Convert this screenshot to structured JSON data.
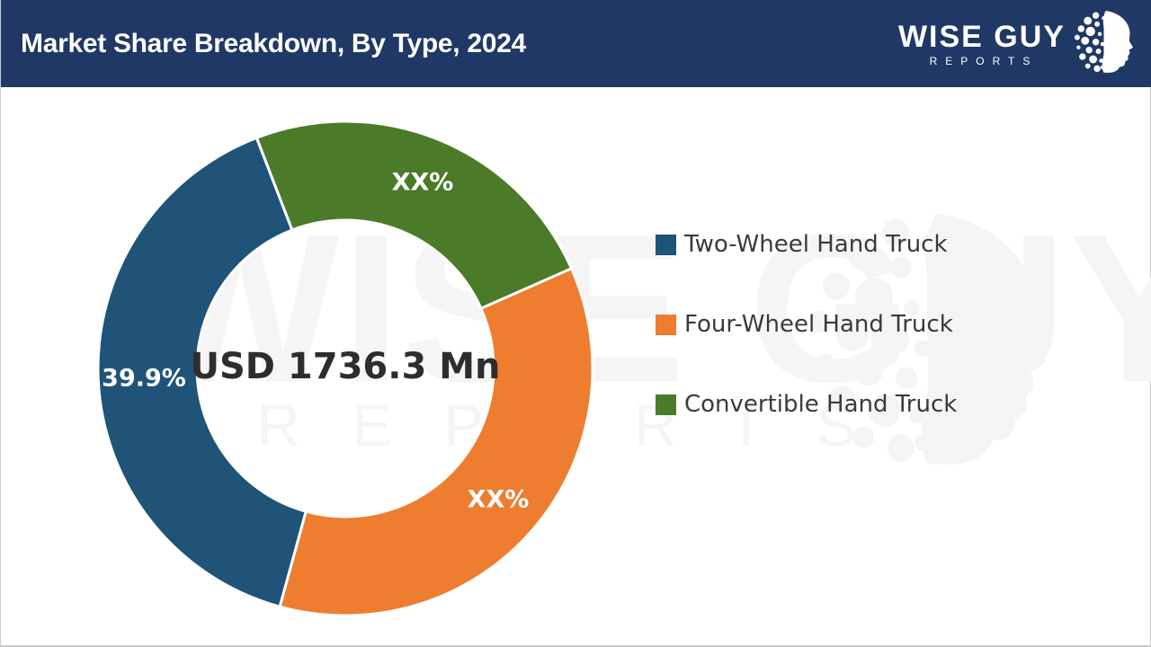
{
  "header": {
    "title": "Market Share Breakdown, By Type, 2024",
    "bg_color": "#1f3866",
    "logo": {
      "line1": "WISE GUY",
      "line2": "REPORTS"
    }
  },
  "watermark": {
    "line1": "WISE GUY",
    "line2": "REPORTS"
  },
  "chart_data": {
    "type": "pie",
    "subtype": "donut",
    "title": "Market Share Breakdown, By Type, 2024",
    "center_label": "USD 1736.3 Mn",
    "start_angle_deg": 111,
    "direction": "counterclockwise",
    "legend_position": "right",
    "segments": [
      {
        "name": "Two-Wheel Hand Truck",
        "value_pct": 39.9,
        "display_label": "39.9%",
        "color": "#1f5378"
      },
      {
        "name": "Four-Wheel Hand Truck",
        "value_pct": 35.9,
        "display_label": "XX%",
        "color": "#ee7d30"
      },
      {
        "name": "Convertible Hand Truck",
        "value_pct": 24.2,
        "display_label": "XX%",
        "color": "#4b7b28"
      }
    ]
  }
}
